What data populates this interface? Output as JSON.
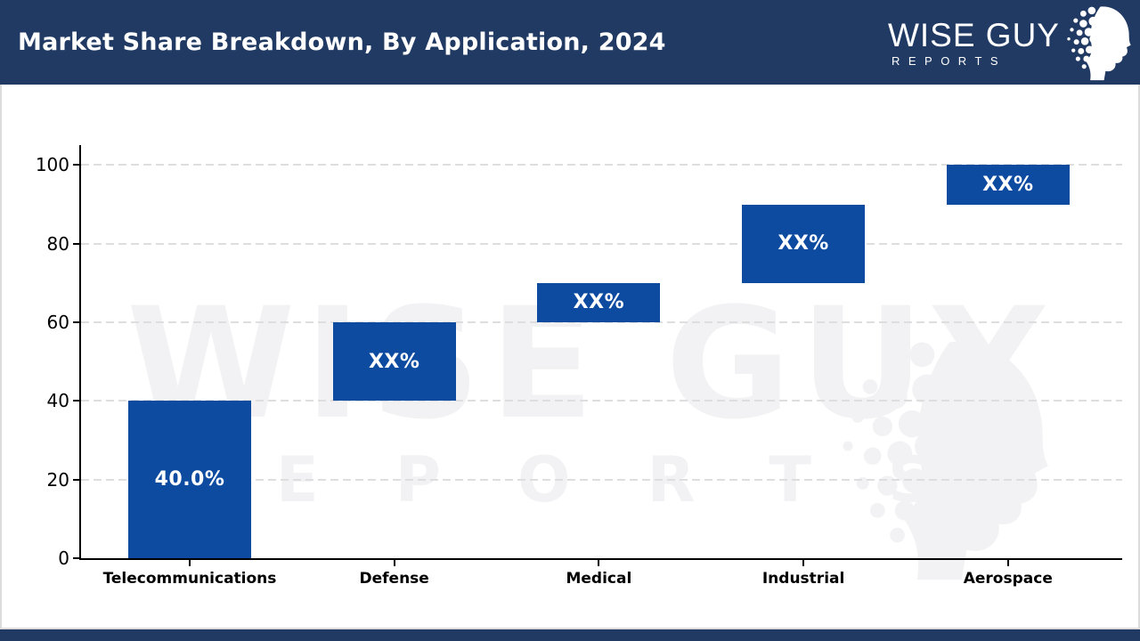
{
  "header": {
    "title": "Market Share Breakdown, By Application, 2024",
    "logo": {
      "name": "WISE GUY",
      "subtitle": "REPORTS"
    }
  },
  "watermark": {
    "line1": "WISE GUY",
    "line2": "REPORTS"
  },
  "colors": {
    "header_bg": "#213a63",
    "footer_bg": "#213a63",
    "bar": "#0d4ba1",
    "bar_label": "#ffffff",
    "watermark": "#f2f2f4",
    "gridline": "#dedede",
    "axis": "#000000"
  },
  "chart_data": {
    "type": "bar",
    "subtype": "waterfall",
    "title": "Market Share Breakdown, By Application, 2024",
    "categories": [
      "Telecommunications",
      "Defense",
      "Medical",
      "Industrial",
      "Aerospace"
    ],
    "bars": [
      {
        "category": "Telecommunications",
        "start": 0,
        "end": 40,
        "label": "40.0%"
      },
      {
        "category": "Defense",
        "start": 40,
        "end": 60,
        "label": "XX%"
      },
      {
        "category": "Medical",
        "start": 60,
        "end": 70,
        "label": "XX%"
      },
      {
        "category": "Industrial",
        "start": 70,
        "end": 90,
        "label": "XX%"
      },
      {
        "category": "Aerospace",
        "start": 90,
        "end": 100,
        "label": "XX%"
      }
    ],
    "xlabel": "",
    "ylabel": "",
    "yticks": [
      0,
      20,
      40,
      60,
      80,
      100
    ],
    "ylim": [
      0,
      105
    ],
    "grid": "horizontal-dashed",
    "legend": "none",
    "bar_color": "#0d4ba1"
  }
}
